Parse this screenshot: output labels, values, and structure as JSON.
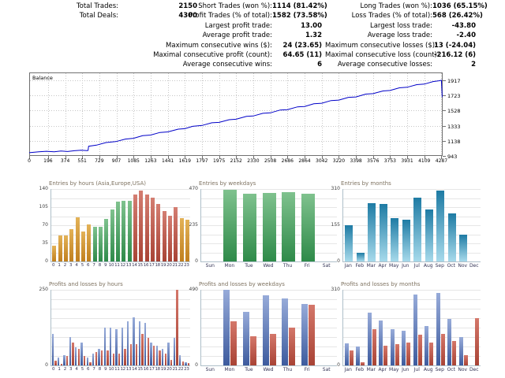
{
  "stats": {
    "left": [
      {
        "label": "Total Trades:",
        "value": "2150"
      },
      {
        "label": "Total Deals:",
        "value": "4300"
      }
    ],
    "center": [
      {
        "label": "Short Trades (won %):",
        "value": "1114 (81.42%)"
      },
      {
        "label": "Profit Trades (% of total):",
        "value": "1582 (73.58%)"
      },
      {
        "label": "Largest profit trade:",
        "value": "13.00"
      },
      {
        "label": "Average profit trade:",
        "value": "1.32"
      },
      {
        "label": "Maximum consecutive wins ($):",
        "value": "24 (23.65)"
      },
      {
        "label": "Maximal consecutive profit (count):",
        "value": "64.65 (11)"
      },
      {
        "label": "Average consecutive wins:",
        "value": "6"
      }
    ],
    "right": [
      {
        "label": "Long Trades (won %):",
        "value": "1036 (65.15%)"
      },
      {
        "label": "Loss Trades (% of total):",
        "value": "568 (26.42%)"
      },
      {
        "label": "Largest loss trade:",
        "value": "-43.80"
      },
      {
        "label": "Average loss trade:",
        "value": "-2.40"
      },
      {
        "label": "Maximum consecutive losses ($):",
        "value": "13 (-24.04)"
      },
      {
        "label": "Maximal consecutive loss (count):",
        "value": "-216.12 (6)"
      },
      {
        "label": "Average consecutive losses:",
        "value": "2"
      }
    ]
  },
  "palette": {
    "balance_line": "#0000C8",
    "asia": [
      "#E3B257",
      "#C07F1E"
    ],
    "europe": [
      "#7FC28E",
      "#2E8A49"
    ],
    "usa": [
      "#D47E72",
      "#A84335"
    ],
    "months": [
      "#1E7BA4",
      "#A7DAEB"
    ],
    "profit": [
      "#97ABD9",
      "#3D5B9E"
    ],
    "loss": [
      "#D4776A",
      "#A84335"
    ]
  },
  "chart_data": [
    {
      "id": "balance",
      "type": "line",
      "label": "Balance",
      "xlim": [
        0,
        4300
      ],
      "ylim": [
        943,
        2018
      ],
      "xticks": [
        0,
        196,
        374,
        551,
        729,
        907,
        1085,
        1263,
        1441,
        1619,
        1797,
        1975,
        2152,
        2330,
        2508,
        2686,
        2864,
        3042,
        3220,
        3398,
        3576,
        3753,
        3931,
        4109,
        4287
      ],
      "yticks": [
        1917,
        1723,
        1528,
        1333,
        1138,
        943
      ],
      "points": [
        [
          0,
          985
        ],
        [
          100,
          996
        ],
        [
          180,
          1003
        ],
        [
          260,
          997
        ],
        [
          330,
          1006
        ],
        [
          400,
          1000
        ],
        [
          470,
          1010
        ],
        [
          540,
          1016
        ],
        [
          600,
          1012
        ],
        [
          612,
          1014
        ],
        [
          618,
          1068
        ],
        [
          700,
          1082
        ],
        [
          800,
          1115
        ],
        [
          900,
          1128
        ],
        [
          1000,
          1160
        ],
        [
          1085,
          1170
        ],
        [
          1180,
          1204
        ],
        [
          1263,
          1212
        ],
        [
          1360,
          1245
        ],
        [
          1441,
          1252
        ],
        [
          1550,
          1288
        ],
        [
          1619,
          1294
        ],
        [
          1700,
          1324
        ],
        [
          1797,
          1335
        ],
        [
          1900,
          1370
        ],
        [
          1975,
          1375
        ],
        [
          2080,
          1410
        ],
        [
          2152,
          1416
        ],
        [
          2260,
          1452
        ],
        [
          2330,
          1457
        ],
        [
          2430,
          1492
        ],
        [
          2508,
          1498
        ],
        [
          2610,
          1534
        ],
        [
          2686,
          1539
        ],
        [
          2790,
          1575
        ],
        [
          2864,
          1580
        ],
        [
          2960,
          1614
        ],
        [
          3042,
          1621
        ],
        [
          3140,
          1656
        ],
        [
          3220,
          1662
        ],
        [
          3320,
          1698
        ],
        [
          3398,
          1703
        ],
        [
          3500,
          1739
        ],
        [
          3576,
          1745
        ],
        [
          3680,
          1780
        ],
        [
          3753,
          1786
        ],
        [
          3850,
          1820
        ],
        [
          3931,
          1827
        ],
        [
          4030,
          1861
        ],
        [
          4109,
          1868
        ],
        [
          4200,
          1900
        ],
        [
          4260,
          1910
        ],
        [
          4287,
          1917
        ],
        [
          4295,
          1700
        ]
      ]
    },
    {
      "id": "entries_hours",
      "type": "bar",
      "title": "Entries by hours (Asia,Europe,USA)",
      "categories": [
        "0",
        "1",
        "2",
        "3",
        "4",
        "5",
        "6",
        "7",
        "8",
        "9",
        "10",
        "11",
        "12",
        "13",
        "14",
        "15",
        "16",
        "17",
        "18",
        "19",
        "20",
        "21",
        "22",
        "23"
      ],
      "values": [
        30,
        50,
        50,
        63,
        85,
        58,
        71,
        67,
        67,
        82,
        100,
        115,
        117,
        117,
        130,
        137,
        130,
        124,
        111,
        97,
        88,
        105,
        84,
        80
      ],
      "bar_colors": [
        "asia",
        "asia",
        "asia",
        "asia",
        "asia",
        "asia",
        "asia",
        "europe",
        "europe",
        "europe",
        "europe",
        "europe",
        "europe",
        "europe",
        "usa",
        "usa",
        "usa",
        "usa",
        "usa",
        "usa",
        "usa",
        "usa",
        "asia",
        "asia"
      ],
      "ymax": 140,
      "yticks": [
        140,
        105,
        70,
        35,
        0
      ],
      "xfont": "small"
    },
    {
      "id": "entries_weekdays",
      "type": "bar",
      "title": "Entries by weekdays",
      "categories": [
        "Sun",
        "Mon",
        "Tue",
        "Wed",
        "Thu",
        "Fri",
        "Sat"
      ],
      "values": [
        0,
        463,
        437,
        444,
        451,
        441,
        0
      ],
      "bar_colors": [
        "europe",
        "europe",
        "europe",
        "europe",
        "europe",
        "europe",
        "europe"
      ],
      "ymax": 470,
      "yticks": [
        470,
        235,
        0
      ],
      "xfont": "normal"
    },
    {
      "id": "entries_months",
      "type": "bar",
      "title": "Entries by months",
      "categories": [
        "Jan",
        "Feb",
        "Mar",
        "Apr",
        "May",
        "Jun",
        "Jul",
        "Aug",
        "Sep",
        "Oct",
        "Nov",
        "Dec"
      ],
      "values": [
        155,
        38,
        250,
        246,
        184,
        180,
        272,
        222,
        302,
        206,
        113,
        0
      ],
      "bar_colors": [
        "months",
        "months",
        "months",
        "months",
        "months",
        "months",
        "months",
        "months",
        "months",
        "months",
        "months",
        "months"
      ],
      "ymax": 310,
      "yticks": [
        310,
        155,
        0
      ],
      "xfont": "normal"
    },
    {
      "id": "pl_hours",
      "type": "bar",
      "title": "Profits and losses by hours",
      "categories": [
        "0",
        "1",
        "2",
        "3",
        "4",
        "5",
        "6",
        "7",
        "8",
        "9",
        "10",
        "11",
        "12",
        "13",
        "14",
        "15",
        "16",
        "17",
        "18",
        "19",
        "20",
        "21",
        "22",
        "23"
      ],
      "series": [
        {
          "name": "profit",
          "color": "profit",
          "values": [
            105,
            25,
            35,
            95,
            60,
            75,
            25,
            40,
            55,
            125,
            125,
            120,
            125,
            145,
            160,
            145,
            140,
            75,
            65,
            55,
            75,
            90,
            35,
            10
          ]
        },
        {
          "name": "loss",
          "color": "loss",
          "values": [
            15,
            5,
            30,
            75,
            55,
            30,
            10,
            45,
            50,
            50,
            40,
            40,
            55,
            70,
            70,
            105,
            90,
            65,
            50,
            40,
            18,
            250,
            12,
            8
          ]
        }
      ],
      "ymax": 250,
      "yticks": [
        250,
        0
      ],
      "xfont": "small"
    },
    {
      "id": "pl_weekdays",
      "type": "bar",
      "title": "Profits and losses by weekdays",
      "categories": [
        "Sun",
        "Mon",
        "Tue",
        "Wed",
        "Thu",
        "Fri",
        "Sat"
      ],
      "series": [
        {
          "name": "profit",
          "color": "profit",
          "values": [
            0,
            488,
            345,
            455,
            435,
            398,
            0
          ]
        },
        {
          "name": "loss",
          "color": "loss",
          "values": [
            0,
            285,
            190,
            205,
            245,
            392,
            0
          ]
        }
      ],
      "ymax": 490,
      "yticks": [
        490,
        0
      ],
      "xfont": "normal"
    },
    {
      "id": "pl_months",
      "type": "bar",
      "title": "Profits and losses by months",
      "categories": [
        "Jan",
        "Feb",
        "Mar",
        "Apr",
        "May",
        "Jun",
        "Jul",
        "Aug",
        "Sep",
        "Oct",
        "Nov",
        "Dec"
      ],
      "series": [
        {
          "name": "profit",
          "color": "profit",
          "values": [
            90,
            78,
            215,
            185,
            150,
            143,
            290,
            160,
            298,
            190,
            115,
            0
          ]
        },
        {
          "name": "loss",
          "color": "loss",
          "values": [
            60,
            12,
            148,
            82,
            88,
            95,
            125,
            93,
            128,
            100,
            42,
            195
          ]
        }
      ],
      "ymax": 310,
      "yticks": [
        310,
        0
      ],
      "xfont": "normal"
    }
  ]
}
